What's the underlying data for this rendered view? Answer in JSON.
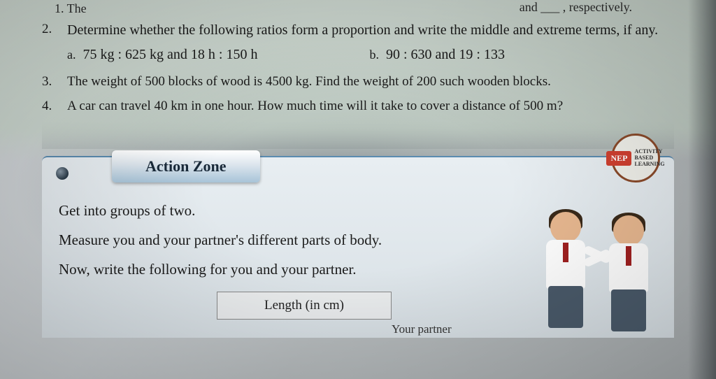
{
  "q1_fragment_left": "1. The",
  "q1_fragment_right": "and ___ , respectively.",
  "q2": {
    "num": "2.",
    "text": "Determine whether the following ratios form a proportion and write the middle and extreme terms, if any.",
    "a_label": "a.",
    "a_text": "75 kg : 625 kg and 18 h : 150 h",
    "b_label": "b.",
    "b_text": "90 : 630 and 19 : 133"
  },
  "q3": {
    "num": "3.",
    "text": "The weight of 500 blocks of wood is 4500 kg. Find the weight of 200 such wooden blocks."
  },
  "q4": {
    "num": "4.",
    "text": "A car can travel 40 km in one hour. How much time will it take to cover a distance of 500 m?"
  },
  "action_zone": {
    "title": "Action Zone",
    "nep_label": "NEP",
    "nep_sub1": "ACTIVITY",
    "nep_sub2": "BASED",
    "nep_sub3": "LEARNING",
    "line1": "Get into groups of two.",
    "line2": "Measure you and your partner's different parts of body.",
    "line3": "Now, write the following for you and your partner.",
    "table_header_length": "Length (in cm)",
    "partner_fragment": "Your partner"
  }
}
